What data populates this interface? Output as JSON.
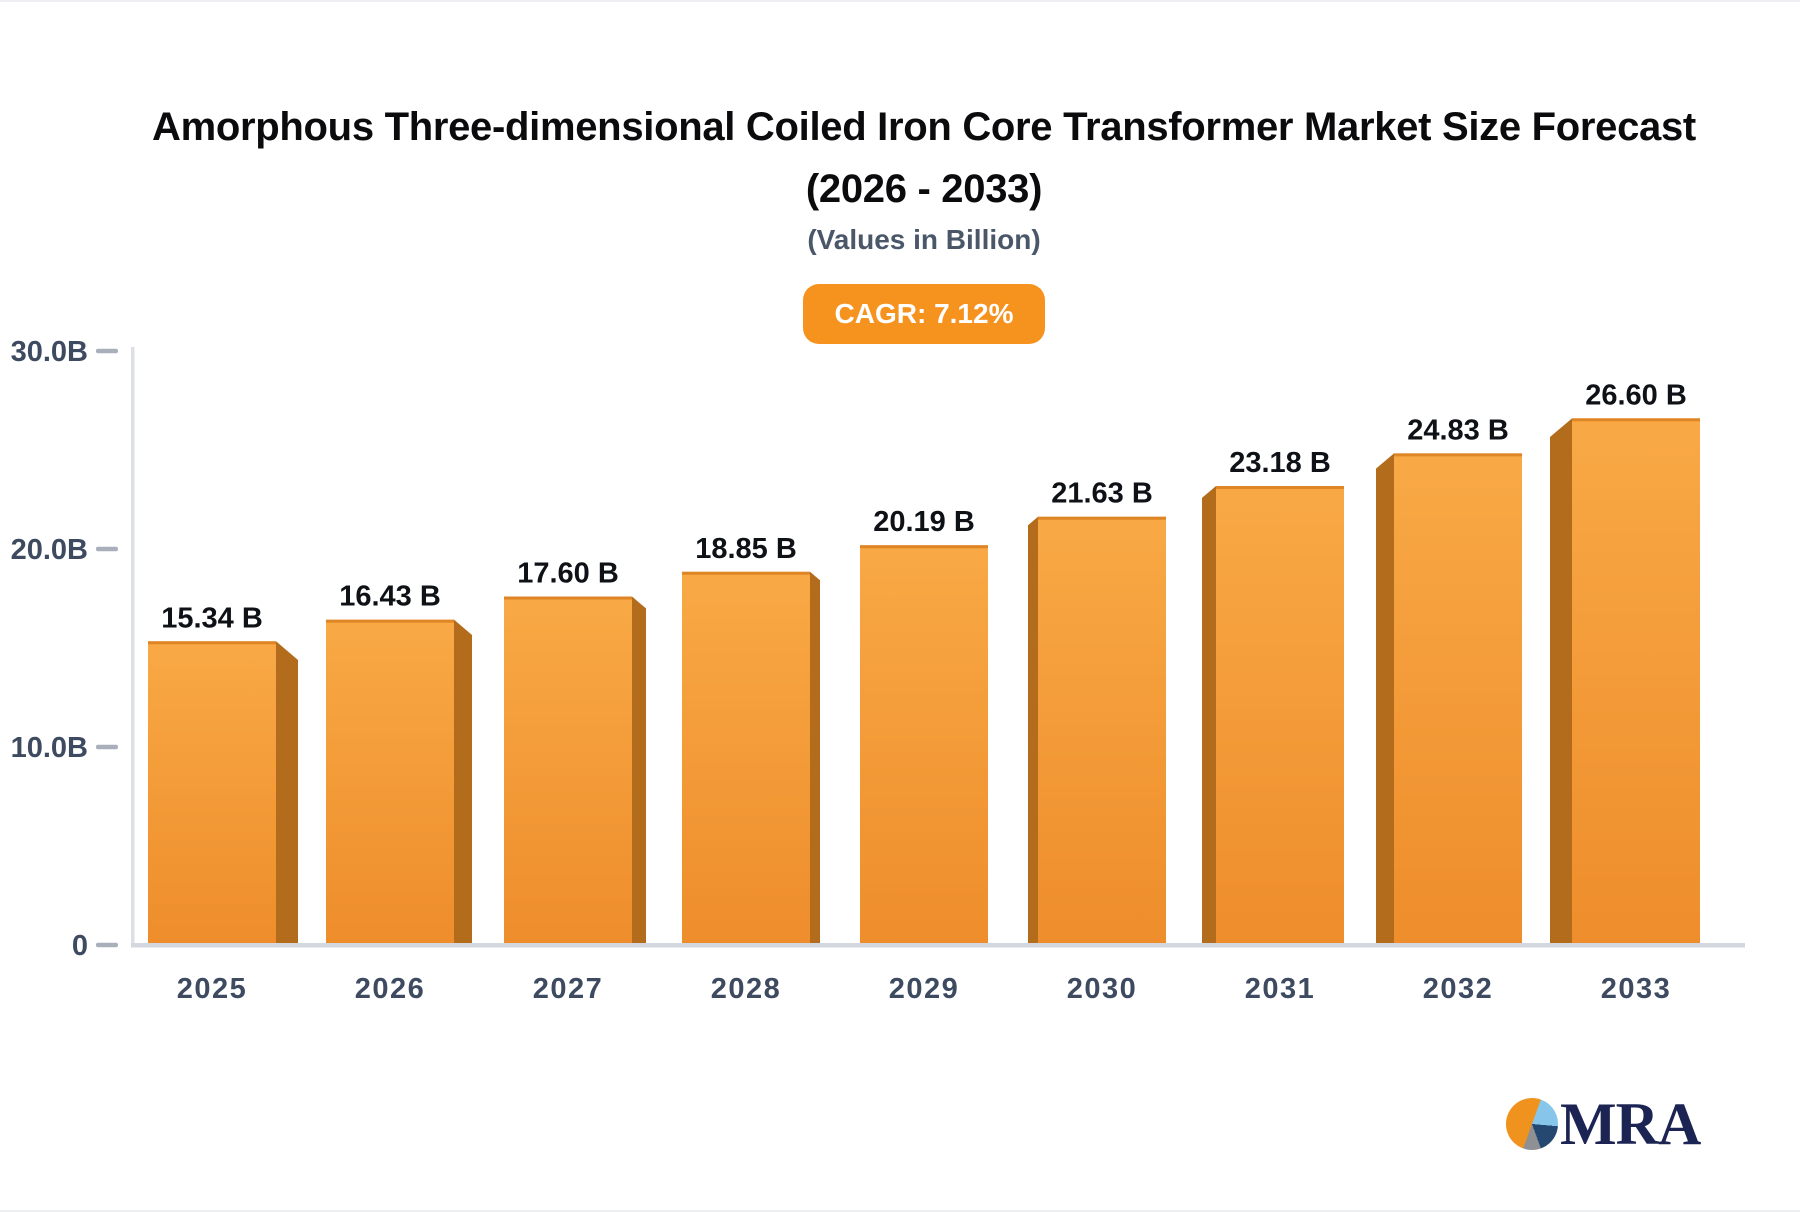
{
  "header": {
    "title_line1": "Amorphous Three-dimensional Coiled Iron Core Transformer Market Size Forecast",
    "title_line2": "(2026 - 2033)",
    "subtitle": "(Values in Billion)",
    "cagr_badge": "CAGR: 7.12%"
  },
  "chart_data": {
    "type": "bar",
    "title": "Amorphous Three-dimensional Coiled Iron Core Transformer Market Size Forecast (2026 - 2033)",
    "subtitle": "(Values in Billion)",
    "cagr": "7.12%",
    "categories": [
      "2025",
      "2026",
      "2027",
      "2028",
      "2029",
      "2030",
      "2031",
      "2032",
      "2033"
    ],
    "values": [
      15.34,
      16.43,
      17.6,
      18.85,
      20.19,
      21.63,
      23.18,
      24.83,
      26.6
    ],
    "value_labels": [
      "15.34 B",
      "16.43 B",
      "17.60 B",
      "18.85 B",
      "20.19 B",
      "21.63 B",
      "23.18 B",
      "24.83 B",
      "26.60 B"
    ],
    "unit": "Billion",
    "ylim": [
      0,
      30
    ],
    "yticks": [
      {
        "value": 0,
        "label": "0"
      },
      {
        "value": 10,
        "label": "10.0B"
      },
      {
        "value": 20,
        "label": "20.0B"
      },
      {
        "value": 30,
        "label": "30.0B"
      }
    ],
    "grid": false,
    "legend": "none",
    "bar_style": "3d",
    "colors": {
      "bar_face_top": "#F8A945",
      "bar_face_bottom": "#EE8D2B",
      "bar_side": "#B36C1B",
      "bar_top_rim": "#DE8526",
      "axis_line": "#DCDFE6",
      "baseline": "#D3D7DF",
      "tick_dash": "#A9B0BC",
      "axis_text": "#3D4A60",
      "value_text": "#0E1116"
    }
  },
  "badge_color": "#F6921E",
  "footer": {
    "logo_text": "MRA",
    "logo_text_color": "#1B2453",
    "pie_colors": {
      "orange": "#F0921E",
      "light_blue": "#85C6EA",
      "navy": "#24486F",
      "gray": "#8F9093"
    }
  }
}
